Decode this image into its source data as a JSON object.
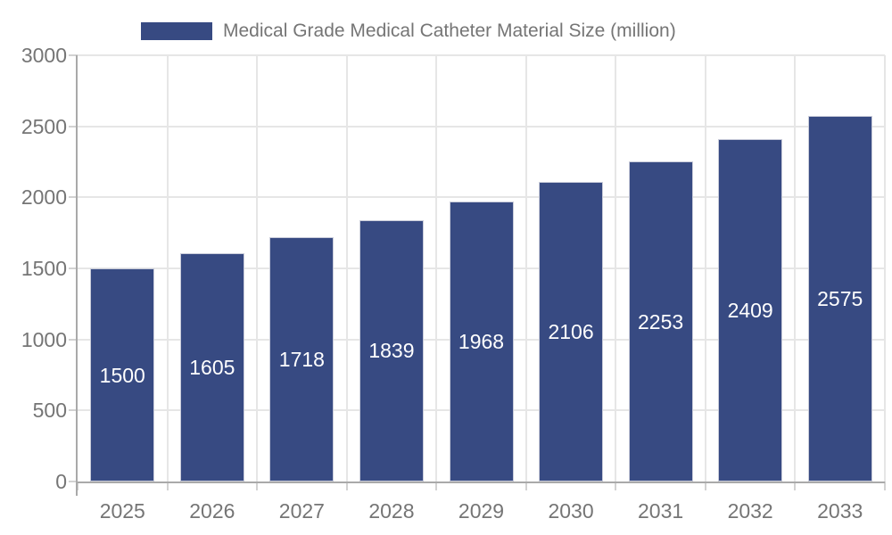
{
  "legend": {
    "label": "Medical Grade Medical Catheter Material Size (million)"
  },
  "chart_data": {
    "type": "bar",
    "title": "",
    "series_name": "Medical Grade Medical Catheter Material Size (million)",
    "categories": [
      "2025",
      "2026",
      "2027",
      "2028",
      "2029",
      "2030",
      "2031",
      "2032",
      "2033"
    ],
    "values": [
      1500,
      1605,
      1718,
      1839,
      1968,
      2106,
      2253,
      2409,
      2575
    ],
    "value_labels_shown": true,
    "xlabel": "",
    "ylabel": "",
    "ylim": [
      0,
      3000
    ],
    "ytick_step": 500,
    "ytick_labels": [
      "0",
      "500",
      "1000",
      "1500",
      "2000",
      "2500",
      "3000"
    ],
    "grid": true,
    "legend_position": "top",
    "colors": {
      "bar_fill": "#374A82",
      "bar_border": "#C9CCDA",
      "value_label": "#FFFFFF",
      "axis_text": "#757575",
      "legend_text": "#757575",
      "gridline": "#E6E6E6",
      "axis_line": "#A9A9A9",
      "tick": "#D2D2D2",
      "background": "#FFFFFF"
    }
  }
}
